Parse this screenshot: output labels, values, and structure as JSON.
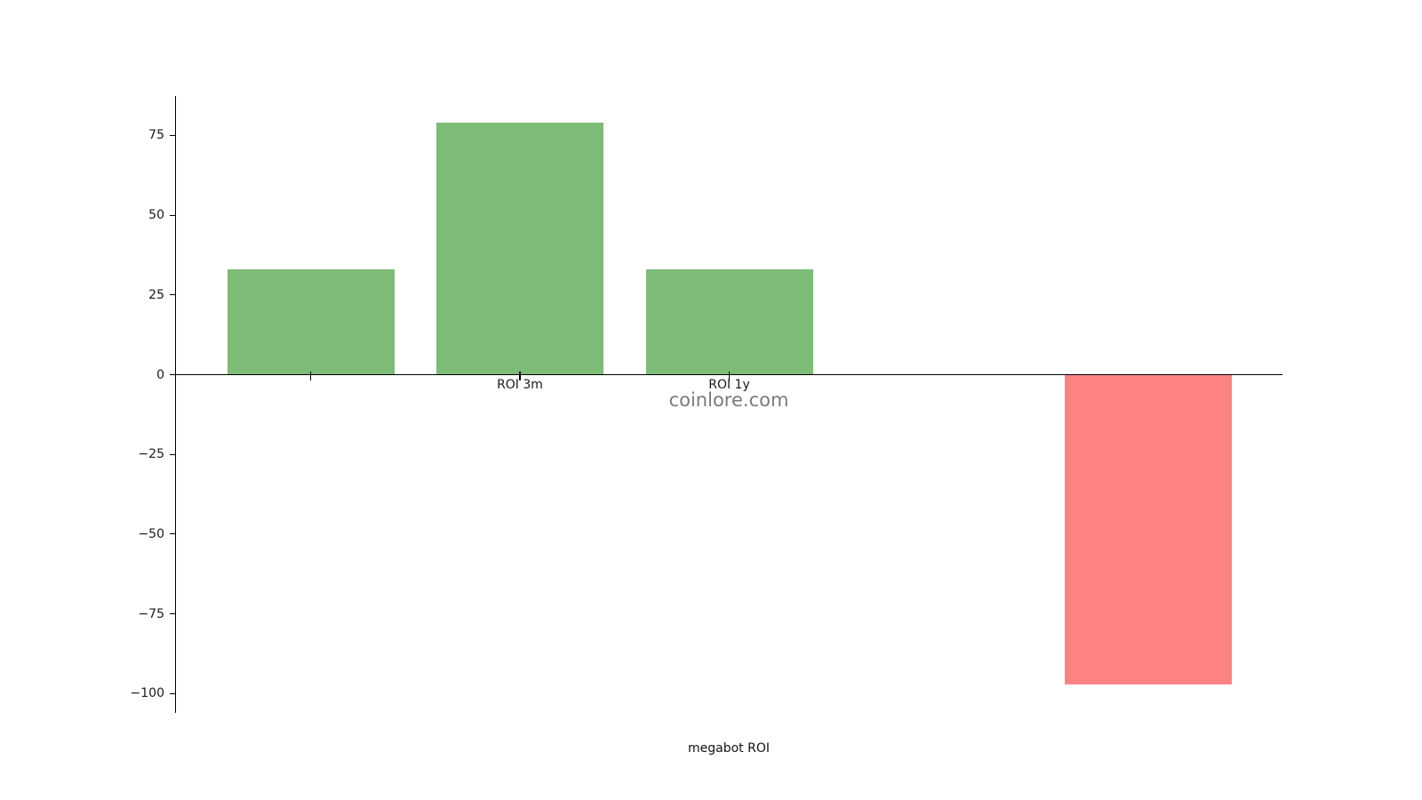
{
  "page": {
    "background": "#ffffff"
  },
  "chart_data": {
    "type": "bar",
    "title": "",
    "xlabel": "megabot ROI",
    "ylabel": "",
    "watermark": "coinlore.com",
    "categories": [
      "",
      "ROI 3m",
      "ROI 1y",
      "",
      ""
    ],
    "values": [
      33,
      79,
      33,
      0,
      -97
    ],
    "bar_colors": [
      "#7cbc77",
      "#7cbc77",
      "#7cbc77",
      "none",
      "#fd8282"
    ],
    "x_ticks_shown": [
      true,
      true,
      true,
      false,
      false
    ],
    "yticks": [
      {
        "label": "75",
        "value": 75
      },
      {
        "label": "50",
        "value": 50
      },
      {
        "label": "25",
        "value": 25
      },
      {
        "label": "0",
        "value": 0
      },
      {
        "label": "−25",
        "value": -25
      },
      {
        "label": "−50",
        "value": -50
      },
      {
        "label": "−75",
        "value": -75
      },
      {
        "label": "−100",
        "value": -100
      }
    ],
    "ylim": [
      -106,
      87.5
    ],
    "grid": false,
    "legend": null,
    "colors": {
      "positive": "#7cbc77",
      "negative": "#fd8282",
      "axis": "#000000",
      "tick_label": "#1a1a1a",
      "watermark": "#7a7a7a"
    }
  }
}
